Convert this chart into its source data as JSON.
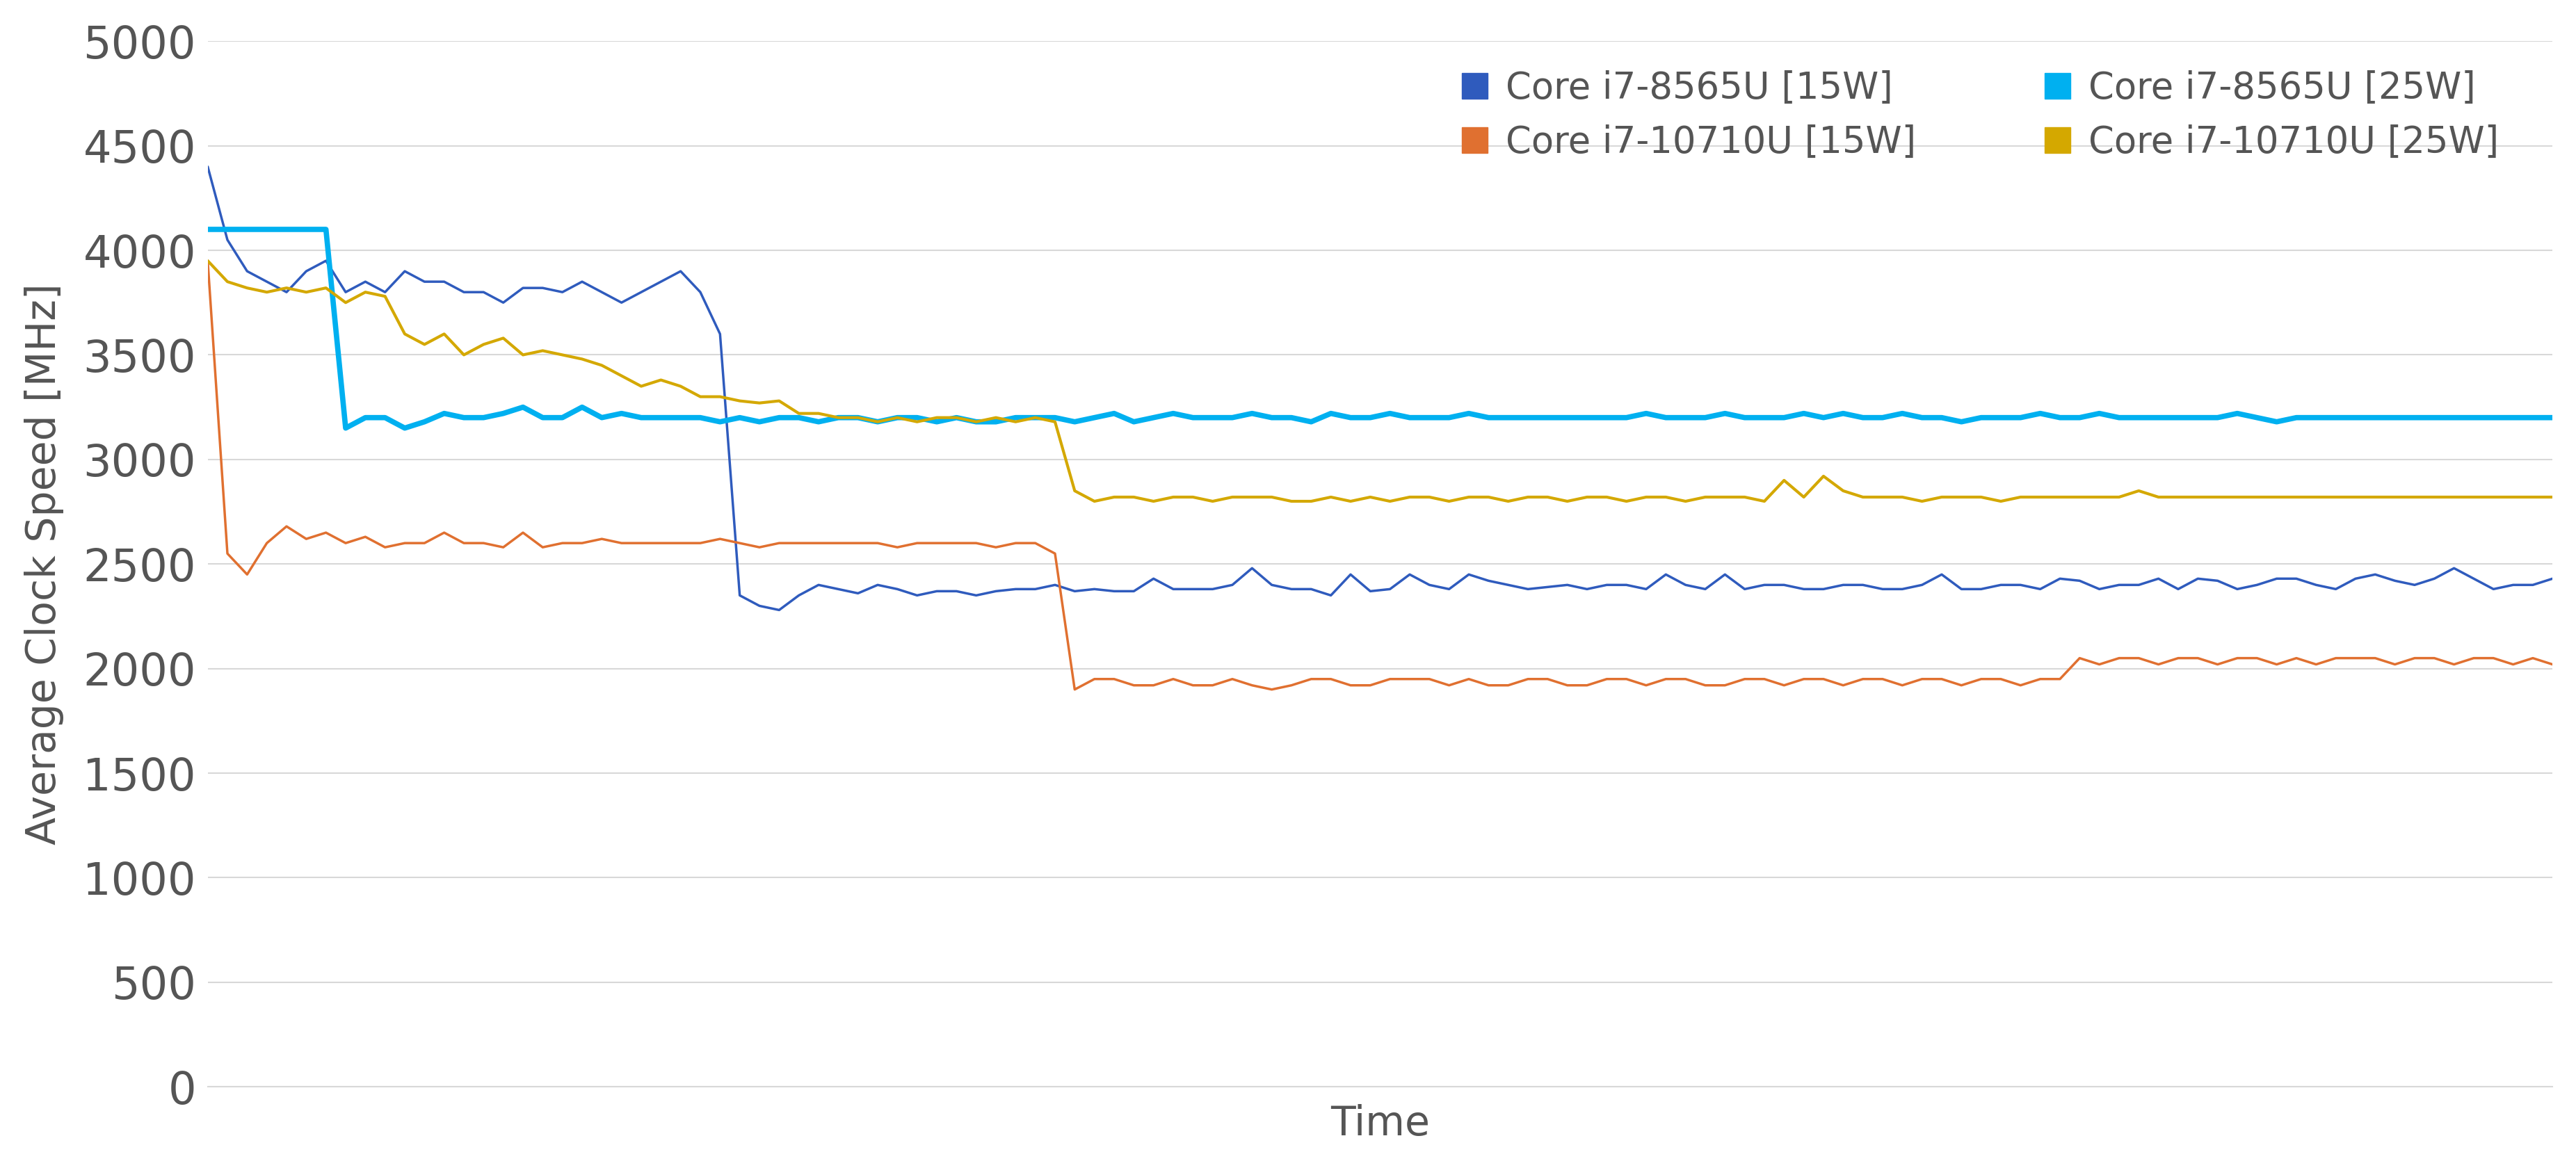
{
  "title": "",
  "xlabel": "Time",
  "ylabel": "Average Clock Speed [MHz]",
  "ylim": [
    0,
    5000
  ],
  "yticks": [
    0,
    500,
    1000,
    1500,
    2000,
    2500,
    3000,
    3500,
    4000,
    4500,
    5000
  ],
  "background_color": "#ffffff",
  "grid_color": "#d8d8d8",
  "legend": [
    {
      "label": "Core i7-8565U [15W]",
      "color": "#2f5bbd"
    },
    {
      "label": "Core i7-10710U [15W]",
      "color": "#e07030"
    },
    {
      "label": "Core i7-8565U [25W]",
      "color": "#00b0f0"
    },
    {
      "label": "Core i7-10710U [25W]",
      "color": "#d4a800"
    }
  ],
  "series_order": [
    "i7_8565u_15w",
    "i7_10710u_15w",
    "i7_8565u_25w",
    "i7_10710u_25w"
  ],
  "linewidths": [
    2.5,
    2.5,
    5.5,
    3.0
  ],
  "series": {
    "i7_8565u_15w": [
      4400,
      4050,
      3900,
      3850,
      3800,
      3900,
      3950,
      3800,
      3850,
      3800,
      3900,
      3850,
      3850,
      3800,
      3800,
      3750,
      3820,
      3820,
      3800,
      3850,
      3800,
      3750,
      3800,
      3850,
      3900,
      3800,
      3600,
      2350,
      2300,
      2280,
      2350,
      2400,
      2380,
      2360,
      2400,
      2380,
      2350,
      2370,
      2370,
      2350,
      2370,
      2380,
      2380,
      2400,
      2370,
      2380,
      2370,
      2370,
      2430,
      2380,
      2380,
      2380,
      2400,
      2480,
      2400,
      2380,
      2380,
      2350,
      2450,
      2370,
      2380,
      2450,
      2400,
      2380,
      2450,
      2420,
      2400,
      2380,
      2390,
      2400,
      2380,
      2400,
      2400,
      2380,
      2450,
      2400,
      2380,
      2450,
      2380,
      2400,
      2400,
      2380,
      2380,
      2400,
      2400,
      2380,
      2380,
      2400,
      2450,
      2380,
      2380,
      2400,
      2400,
      2380,
      2430,
      2420,
      2380,
      2400,
      2400,
      2430,
      2380,
      2430,
      2420,
      2380,
      2400,
      2430,
      2430,
      2400,
      2380,
      2430,
      2450,
      2420,
      2400,
      2430,
      2480,
      2430,
      2380,
      2400,
      2400,
      2430
    ],
    "i7_10710u_15w": [
      3950,
      2550,
      2450,
      2600,
      2680,
      2620,
      2650,
      2600,
      2630,
      2580,
      2600,
      2600,
      2650,
      2600,
      2600,
      2580,
      2650,
      2580,
      2600,
      2600,
      2620,
      2600,
      2600,
      2600,
      2600,
      2600,
      2620,
      2600,
      2580,
      2600,
      2600,
      2600,
      2600,
      2600,
      2600,
      2580,
      2600,
      2600,
      2600,
      2600,
      2580,
      2600,
      2600,
      2550,
      1900,
      1950,
      1950,
      1920,
      1920,
      1950,
      1920,
      1920,
      1950,
      1920,
      1900,
      1920,
      1950,
      1950,
      1920,
      1920,
      1950,
      1950,
      1950,
      1920,
      1950,
      1920,
      1920,
      1950,
      1950,
      1920,
      1920,
      1950,
      1950,
      1920,
      1950,
      1950,
      1920,
      1920,
      1950,
      1950,
      1920,
      1950,
      1950,
      1920,
      1950,
      1950,
      1920,
      1950,
      1950,
      1920,
      1950,
      1950,
      1920,
      1950,
      1950,
      2050,
      2020,
      2050,
      2050,
      2020,
      2050,
      2050,
      2020,
      2050,
      2050,
      2020,
      2050,
      2020,
      2050,
      2050,
      2050,
      2020,
      2050,
      2050,
      2020,
      2050,
      2050,
      2020,
      2050,
      2020
    ],
    "i7_8565u_25w": [
      4100,
      4100,
      4100,
      4100,
      4100,
      4100,
      4100,
      3150,
      3200,
      3200,
      3150,
      3180,
      3220,
      3200,
      3200,
      3220,
      3250,
      3200,
      3200,
      3250,
      3200,
      3220,
      3200,
      3200,
      3200,
      3200,
      3180,
      3200,
      3180,
      3200,
      3200,
      3180,
      3200,
      3200,
      3180,
      3200,
      3200,
      3180,
      3200,
      3180,
      3180,
      3200,
      3200,
      3200,
      3180,
      3200,
      3220,
      3180,
      3200,
      3220,
      3200,
      3200,
      3200,
      3220,
      3200,
      3200,
      3180,
      3220,
      3200,
      3200,
      3220,
      3200,
      3200,
      3200,
      3220,
      3200,
      3200,
      3200,
      3200,
      3200,
      3200,
      3200,
      3200,
      3220,
      3200,
      3200,
      3200,
      3220,
      3200,
      3200,
      3200,
      3220,
      3200,
      3220,
      3200,
      3200,
      3220,
      3200,
      3200,
      3180,
      3200,
      3200,
      3200,
      3220,
      3200,
      3200,
      3220,
      3200,
      3200,
      3200,
      3200,
      3200,
      3200,
      3220,
      3200,
      3180,
      3200,
      3200,
      3200,
      3200,
      3200,
      3200,
      3200,
      3200,
      3200,
      3200,
      3200,
      3200,
      3200,
      3200
    ],
    "i7_10710u_25w": [
      3950,
      3850,
      3820,
      3800,
      3820,
      3800,
      3820,
      3750,
      3800,
      3780,
      3600,
      3550,
      3600,
      3500,
      3550,
      3580,
      3500,
      3520,
      3500,
      3480,
      3450,
      3400,
      3350,
      3380,
      3350,
      3300,
      3300,
      3280,
      3270,
      3280,
      3220,
      3220,
      3200,
      3200,
      3180,
      3200,
      3180,
      3200,
      3200,
      3180,
      3200,
      3180,
      3200,
      3180,
      2850,
      2800,
      2820,
      2820,
      2800,
      2820,
      2820,
      2800,
      2820,
      2820,
      2820,
      2800,
      2800,
      2820,
      2800,
      2820,
      2800,
      2820,
      2820,
      2800,
      2820,
      2820,
      2800,
      2820,
      2820,
      2800,
      2820,
      2820,
      2800,
      2820,
      2820,
      2800,
      2820,
      2820,
      2820,
      2800,
      2900,
      2820,
      2920,
      2850,
      2820,
      2820,
      2820,
      2800,
      2820,
      2820,
      2820,
      2800,
      2820,
      2820,
      2820,
      2820,
      2820,
      2820,
      2850,
      2820,
      2820,
      2820,
      2820,
      2820,
      2820,
      2820,
      2820,
      2820,
      2820,
      2820,
      2820,
      2820,
      2820,
      2820,
      2820,
      2820,
      2820,
      2820,
      2820,
      2820
    ]
  }
}
